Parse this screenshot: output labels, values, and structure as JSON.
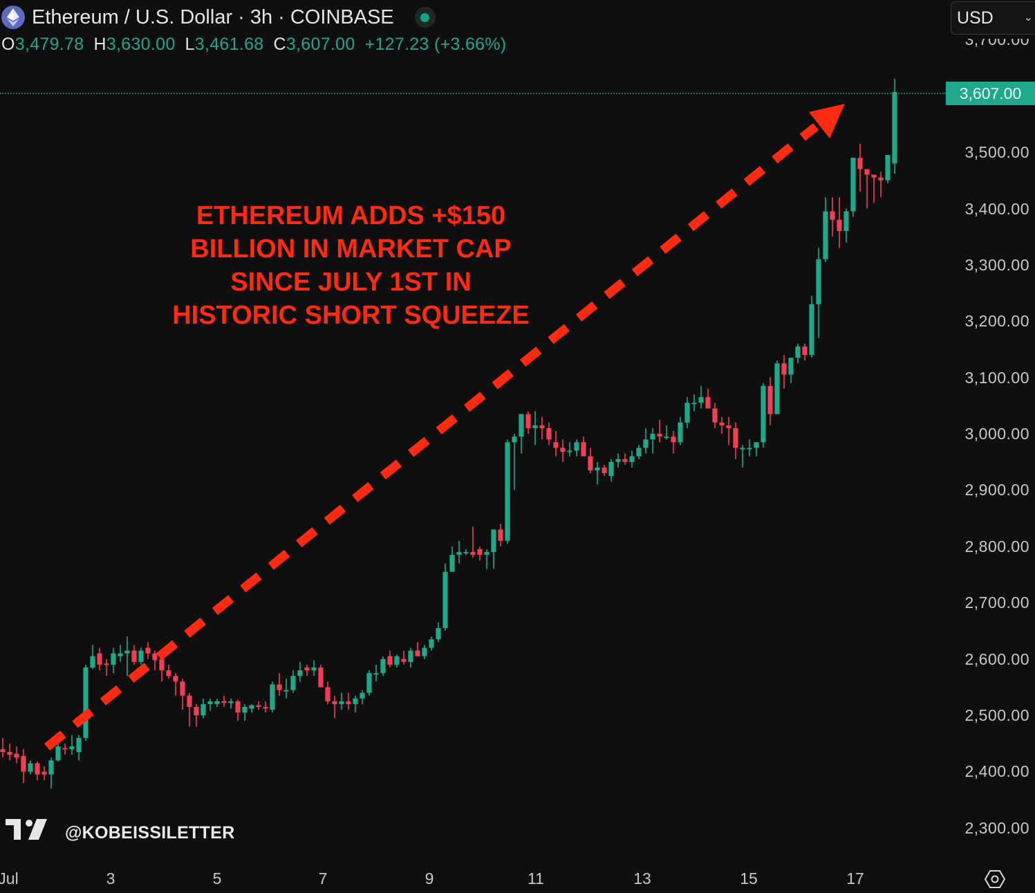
{
  "header": {
    "symbol_icon": "ethereum-icon",
    "title": "Ethereum / U.S. Dollar · 3h · COINBASE",
    "market_status": "open",
    "ohlc": {
      "o_label": "O",
      "o_value": "3,479.78",
      "h_label": "H",
      "h_value": "3,630.00",
      "l_label": "L",
      "l_value": "3,461.68",
      "c_label": "C",
      "c_value": "3,607.00",
      "change": "+127.23 (+3.66%)"
    }
  },
  "currency_select": {
    "value": "USD"
  },
  "price_axis": {
    "labels": [
      "3,700.00",
      "3,500.00",
      "3,400.00",
      "3,300.00",
      "3,200.00",
      "3,100.00",
      "3,000.00",
      "2,900.00",
      "2,800.00",
      "2,700.00",
      "2,600.00",
      "2,500.00",
      "2,400.00",
      "2,300.00"
    ],
    "last_price": "3,607.00"
  },
  "time_axis": {
    "labels": [
      "Jul",
      "3",
      "5",
      "7",
      "9",
      "11",
      "13",
      "15",
      "17"
    ]
  },
  "annotation": {
    "lines": [
      "ETHEREUM ADDS +$150",
      "BILLION IN MARKET CAP",
      "SINCE JULY 1ST IN",
      "HISTORIC SHORT SQUEEZE"
    ],
    "color": "#ff2a12"
  },
  "watermark": {
    "logo": "tradingview-logo-icon",
    "handle": "@KOBEISSILETTER"
  },
  "colors": {
    "up": "#1fa88a",
    "down": "#f23e55",
    "background": "#0f0f0f",
    "arrow": "#ff2a12"
  },
  "chart_data": {
    "type": "candlestick",
    "title": "Ethereum / U.S. Dollar · 3h · COINBASE",
    "xlabel": "",
    "ylabel": "USD",
    "ylim": [
      2280,
      3720
    ],
    "x_tick_labels": [
      "Jul",
      "3",
      "5",
      "7",
      "9",
      "11",
      "13",
      "15",
      "17"
    ],
    "y_tick_labels": [
      3500,
      3400,
      3300,
      3200,
      3100,
      3000,
      2900,
      2800,
      2700,
      2600,
      2500,
      2400,
      2300
    ],
    "last_price": 3607.0,
    "last_bar": {
      "open": 3479.78,
      "high": 3630.0,
      "low": 3461.68,
      "close": 3607.0,
      "change": 127.23,
      "change_pct": 3.66
    },
    "candles": [
      [
        2440,
        2460,
        2425,
        2435
      ],
      [
        2435,
        2450,
        2420,
        2430
      ],
      [
        2432,
        2445,
        2415,
        2425
      ],
      [
        2428,
        2440,
        2380,
        2400
      ],
      [
        2400,
        2420,
        2395,
        2415
      ],
      [
        2415,
        2418,
        2385,
        2395
      ],
      [
        2400,
        2410,
        2385,
        2395
      ],
      [
        2395,
        2425,
        2370,
        2420
      ],
      [
        2420,
        2450,
        2418,
        2445
      ],
      [
        2442,
        2450,
        2430,
        2440
      ],
      [
        2440,
        2465,
        2430,
        2445
      ],
      [
        2435,
        2465,
        2420,
        2460
      ],
      [
        2460,
        2590,
        2455,
        2585
      ],
      [
        2585,
        2625,
        2582,
        2605
      ],
      [
        2610,
        2620,
        2580,
        2590
      ],
      [
        2592,
        2600,
        2570,
        2590
      ],
      [
        2590,
        2620,
        2575,
        2610
      ],
      [
        2605,
        2625,
        2595,
        2610
      ],
      [
        2610,
        2640,
        2570,
        2615
      ],
      [
        2615,
        2625,
        2590,
        2595
      ],
      [
        2595,
        2620,
        2590,
        2615
      ],
      [
        2620,
        2630,
        2600,
        2610
      ],
      [
        2610,
        2615,
        2580,
        2598
      ],
      [
        2600,
        2605,
        2560,
        2580
      ],
      [
        2580,
        2590,
        2565,
        2570
      ],
      [
        2570,
        2575,
        2535,
        2560
      ],
      [
        2560,
        2565,
        2510,
        2535
      ],
      [
        2535,
        2540,
        2480,
        2515
      ],
      [
        2515,
        2520,
        2480,
        2500
      ],
      [
        2500,
        2530,
        2495,
        2520
      ],
      [
        2520,
        2530,
        2508,
        2525
      ],
      [
        2520,
        2530,
        2515,
        2525
      ],
      [
        2525,
        2535,
        2515,
        2522
      ],
      [
        2522,
        2530,
        2512,
        2525
      ],
      [
        2525,
        2528,
        2490,
        2505
      ],
      [
        2505,
        2520,
        2490,
        2515
      ],
      [
        2512,
        2520,
        2505,
        2518
      ],
      [
        2518,
        2525,
        2510,
        2515
      ],
      [
        2515,
        2525,
        2505,
        2512
      ],
      [
        2510,
        2560,
        2505,
        2555
      ],
      [
        2555,
        2575,
        2535,
        2545
      ],
      [
        2545,
        2565,
        2530,
        2545
      ],
      [
        2545,
        2580,
        2540,
        2570
      ],
      [
        2570,
        2595,
        2560,
        2580
      ],
      [
        2585,
        2590,
        2570,
        2580
      ],
      [
        2580,
        2598,
        2570,
        2585
      ],
      [
        2585,
        2590,
        2550,
        2550
      ],
      [
        2550,
        2560,
        2520,
        2525
      ],
      [
        2525,
        2535,
        2495,
        2520
      ],
      [
        2520,
        2540,
        2510,
        2525
      ],
      [
        2525,
        2540,
        2510,
        2520
      ],
      [
        2520,
        2535,
        2505,
        2530
      ],
      [
        2530,
        2545,
        2520,
        2540
      ],
      [
        2540,
        2580,
        2535,
        2575
      ],
      [
        2575,
        2590,
        2560,
        2575
      ],
      [
        2575,
        2605,
        2570,
        2600
      ],
      [
        2605,
        2615,
        2585,
        2590
      ],
      [
        2590,
        2608,
        2585,
        2605
      ],
      [
        2600,
        2615,
        2590,
        2595
      ],
      [
        2595,
        2620,
        2585,
        2615
      ],
      [
        2615,
        2630,
        2605,
        2605
      ],
      [
        2605,
        2625,
        2600,
        2620
      ],
      [
        2620,
        2640,
        2615,
        2635
      ],
      [
        2635,
        2665,
        2630,
        2655
      ],
      [
        2655,
        2770,
        2650,
        2755
      ],
      [
        2755,
        2800,
        2755,
        2785
      ],
      [
        2785,
        2810,
        2770,
        2790
      ],
      [
        2790,
        2795,
        2785,
        2790
      ],
      [
        2790,
        2835,
        2780,
        2785
      ],
      [
        2795,
        2800,
        2775,
        2785
      ],
      [
        2785,
        2795,
        2760,
        2790
      ],
      [
        2790,
        2830,
        2760,
        2830
      ],
      [
        2830,
        2840,
        2800,
        2810
      ],
      [
        2810,
        2990,
        2805,
        2985
      ],
      [
        2985,
        3000,
        2900,
        2995
      ],
      [
        2995,
        3035,
        2965,
        3035
      ],
      [
        3035,
        3040,
        3000,
        3010
      ],
      [
        3010,
        3040,
        2980,
        3015
      ],
      [
        3015,
        3030,
        2990,
        3010
      ],
      [
        3010,
        3020,
        2980,
        2990
      ],
      [
        2985,
        3005,
        2960,
        2975
      ],
      [
        2975,
        2990,
        2950,
        2968
      ],
      [
        2970,
        2985,
        2960,
        2970
      ],
      [
        2970,
        2990,
        2960,
        2985
      ],
      [
        2985,
        2995,
        2965,
        2960
      ],
      [
        2960,
        2975,
        2930,
        2935
      ],
      [
        2935,
        2950,
        2910,
        2940
      ],
      [
        2940,
        2945,
        2925,
        2930
      ],
      [
        2925,
        2955,
        2915,
        2950
      ],
      [
        2950,
        2965,
        2940,
        2955
      ],
      [
        2955,
        2965,
        2945,
        2950
      ],
      [
        2950,
        2970,
        2940,
        2960
      ],
      [
        2960,
        2980,
        2955,
        2975
      ],
      [
        2975,
        3010,
        2965,
        2990
      ],
      [
        2990,
        3010,
        2965,
        3000
      ],
      [
        3000,
        3025,
        2985,
        2995
      ],
      [
        2995,
        3015,
        2990,
        2995
      ],
      [
        2995,
        3005,
        2965,
        2985
      ],
      [
        2985,
        3030,
        2980,
        3020
      ],
      [
        3020,
        3065,
        3010,
        3055
      ],
      [
        3055,
        3070,
        3040,
        3055
      ],
      [
        3055,
        3085,
        3045,
        3065
      ],
      [
        3065,
        3080,
        3045,
        3045
      ],
      [
        3045,
        3055,
        3010,
        3020
      ],
      [
        3020,
        3030,
        3000,
        3015
      ],
      [
        3015,
        3030,
        2980,
        3010
      ],
      [
        3010,
        3020,
        2955,
        2975
      ],
      [
        2975,
        2980,
        2940,
        2975
      ],
      [
        2975,
        2990,
        2960,
        2975
      ],
      [
        2975,
        2985,
        2960,
        2985
      ],
      [
        2985,
        3090,
        2975,
        3085
      ],
      [
        3085,
        3100,
        3015,
        3035
      ],
      [
        3035,
        3130,
        3035,
        3125
      ],
      [
        3125,
        3140,
        3080,
        3105
      ],
      [
        3105,
        3135,
        3090,
        3135
      ],
      [
        3135,
        3160,
        3125,
        3155
      ],
      [
        3155,
        3160,
        3130,
        3140
      ],
      [
        3140,
        3245,
        3135,
        3230
      ],
      [
        3230,
        3330,
        3170,
        3310
      ],
      [
        3310,
        3420,
        3305,
        3395
      ],
      [
        3395,
        3420,
        3350,
        3380
      ],
      [
        3380,
        3420,
        3330,
        3360
      ],
      [
        3360,
        3400,
        3340,
        3395
      ],
      [
        3395,
        3490,
        3385,
        3490
      ],
      [
        3490,
        3515,
        3430,
        3470
      ],
      [
        3470,
        3465,
        3400,
        3460
      ],
      [
        3460,
        3460,
        3410,
        3455
      ],
      [
        3455,
        3465,
        3420,
        3450
      ],
      [
        3450,
        3495,
        3445,
        3495
      ],
      [
        3480,
        3630,
        3462,
        3607
      ]
    ]
  }
}
